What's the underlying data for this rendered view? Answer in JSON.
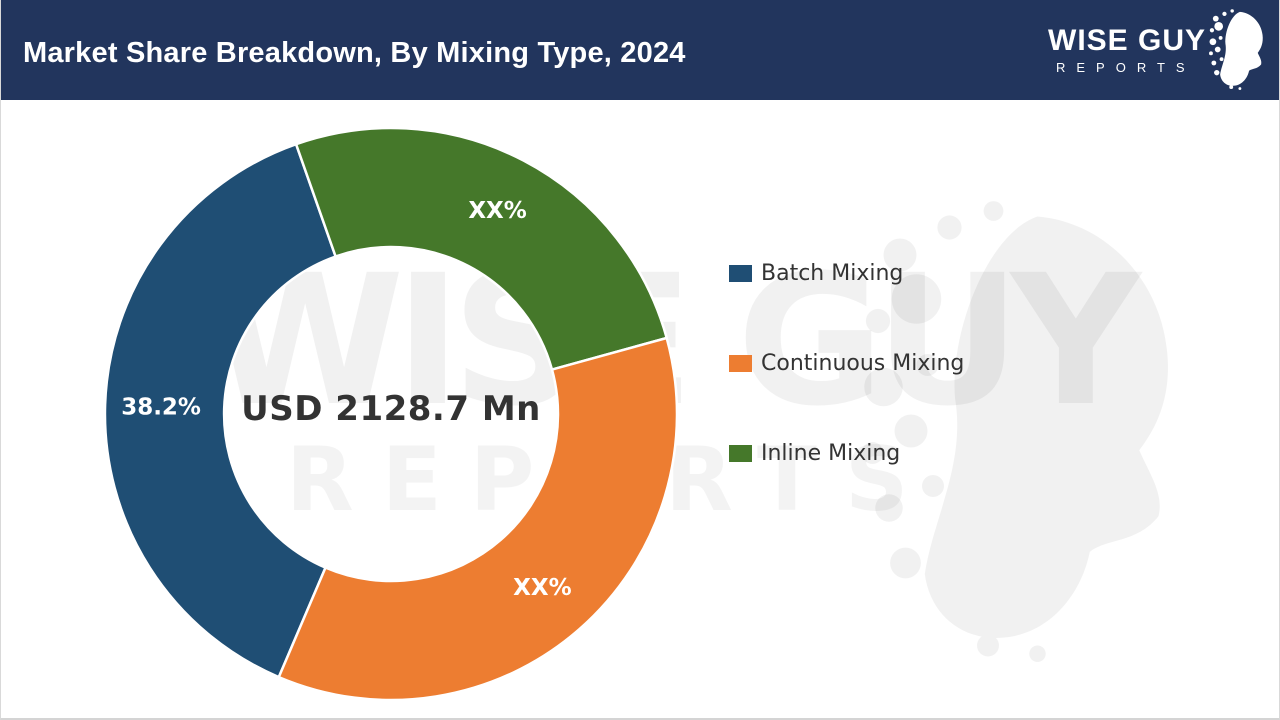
{
  "header": {
    "title": "Market Share Breakdown, By Mixing Type, 2024",
    "logo": {
      "line1": "WISE GUY",
      "line2": "REPORTS"
    }
  },
  "chart_data": {
    "type": "pie",
    "donut": true,
    "title": "Market Share Breakdown, By Mixing Type, 2024",
    "center_label": "USD 2128.7 Mn",
    "start_angle_deg": 203.1,
    "hole_ratio": 0.58,
    "legend_position": "right",
    "segments": [
      {
        "name": "Batch Mixing",
        "value": 38.2,
        "label": "38.2%",
        "color": "#1f4e74"
      },
      {
        "name": "Inline Mixing",
        "value": 26.1,
        "label": "XX%",
        "color": "#45782a"
      },
      {
        "name": "Continuous Mixing",
        "value": 35.7,
        "label": "XX%",
        "color": "#ed7d31"
      }
    ]
  },
  "legend": {
    "items": [
      {
        "label": "Batch Mixing",
        "color": "#1f4e74"
      },
      {
        "label": "Continuous Mixing",
        "color": "#ed7d31"
      },
      {
        "label": "Inline Mixing",
        "color": "#45782a"
      }
    ]
  },
  "watermark": {
    "line1": "WISE GUY",
    "line2": "REPORTS"
  },
  "colors": {
    "header_bg": "#22355d",
    "title_text": "#ffffff",
    "center_text": "#333333",
    "legend_text": "#333333",
    "segment_label_text": "#ffffff"
  }
}
